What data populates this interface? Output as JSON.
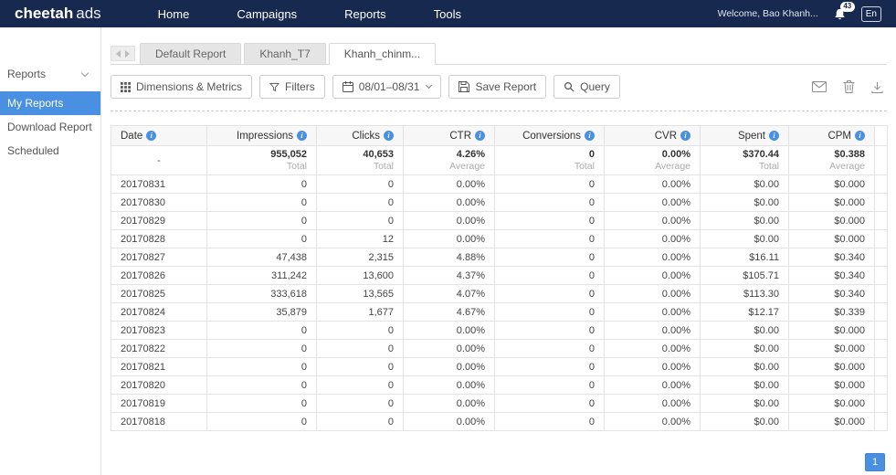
{
  "colors": {
    "navbar_bg": "#17294e",
    "accent": "#4a90e2"
  },
  "navbar": {
    "brand_bold": "cheetah",
    "brand_light": "ads",
    "items": [
      {
        "label": "Home"
      },
      {
        "label": "Campaigns"
      },
      {
        "label": "Reports"
      },
      {
        "label": "Tools"
      }
    ],
    "welcome": "Welcome,",
    "username": "Bao Khanh...",
    "notification_count": "43",
    "language": "En"
  },
  "sidebar": {
    "section": "Reports",
    "items": [
      {
        "label": "My Reports",
        "active": true
      },
      {
        "label": "Download Report",
        "active": false
      },
      {
        "label": "Scheduled",
        "active": false
      }
    ]
  },
  "tabs": [
    {
      "label": "Default Report",
      "active": false
    },
    {
      "label": "Khanh_T7",
      "active": false
    },
    {
      "label": "Khanh_chinm...",
      "active": true
    }
  ],
  "toolbar": {
    "buttons": [
      {
        "label": "Dimensions & Metrics",
        "icon": "grid-icon"
      },
      {
        "label": "Filters",
        "icon": "filter-icon"
      },
      {
        "label": "08/01–08/31",
        "icon": "calendar-icon"
      },
      {
        "label": "Save Report",
        "icon": "save-icon"
      },
      {
        "label": "Query",
        "icon": "search-icon"
      }
    ],
    "right_icons": [
      "mail-icon",
      "trash-icon",
      "download-icon"
    ]
  },
  "table": {
    "columns": [
      "Date",
      "Impressions",
      "Clicks",
      "CTR",
      "Conversions",
      "CVR",
      "Spent",
      "CPM"
    ],
    "totals": {
      "date": "-",
      "cells": [
        {
          "value": "955,052",
          "sub": "Total"
        },
        {
          "value": "40,653",
          "sub": "Total"
        },
        {
          "value": "4.26%",
          "sub": "Average"
        },
        {
          "value": "0",
          "sub": "Total"
        },
        {
          "value": "0.00%",
          "sub": "Average"
        },
        {
          "value": "$370.44",
          "sub": "Total"
        },
        {
          "value": "$0.388",
          "sub": "Average"
        }
      ]
    },
    "rows": [
      [
        "20170831",
        "0",
        "0",
        "0.00%",
        "0",
        "0.00%",
        "$0.00",
        "$0.000"
      ],
      [
        "20170830",
        "0",
        "0",
        "0.00%",
        "0",
        "0.00%",
        "$0.00",
        "$0.000"
      ],
      [
        "20170829",
        "0",
        "0",
        "0.00%",
        "0",
        "0.00%",
        "$0.00",
        "$0.000"
      ],
      [
        "20170828",
        "0",
        "12",
        "0.00%",
        "0",
        "0.00%",
        "$0.00",
        "$0.000"
      ],
      [
        "20170827",
        "47,438",
        "2,315",
        "4.88%",
        "0",
        "0.00%",
        "$16.11",
        "$0.340"
      ],
      [
        "20170826",
        "311,242",
        "13,600",
        "4.37%",
        "0",
        "0.00%",
        "$105.71",
        "$0.340"
      ],
      [
        "20170825",
        "333,618",
        "13,565",
        "4.07%",
        "0",
        "0.00%",
        "$113.30",
        "$0.340"
      ],
      [
        "20170824",
        "35,879",
        "1,677",
        "4.67%",
        "0",
        "0.00%",
        "$12.17",
        "$0.339"
      ],
      [
        "20170823",
        "0",
        "0",
        "0.00%",
        "0",
        "0.00%",
        "$0.00",
        "$0.000"
      ],
      [
        "20170822",
        "0",
        "0",
        "0.00%",
        "0",
        "0.00%",
        "$0.00",
        "$0.000"
      ],
      [
        "20170821",
        "0",
        "0",
        "0.00%",
        "0",
        "0.00%",
        "$0.00",
        "$0.000"
      ],
      [
        "20170820",
        "0",
        "0",
        "0.00%",
        "0",
        "0.00%",
        "$0.00",
        "$0.000"
      ],
      [
        "20170819",
        "0",
        "0",
        "0.00%",
        "0",
        "0.00%",
        "$0.00",
        "$0.000"
      ],
      [
        "20170818",
        "0",
        "0",
        "0.00%",
        "0",
        "0.00%",
        "$0.00",
        "$0.000"
      ]
    ]
  },
  "pagination": {
    "page": "1"
  }
}
